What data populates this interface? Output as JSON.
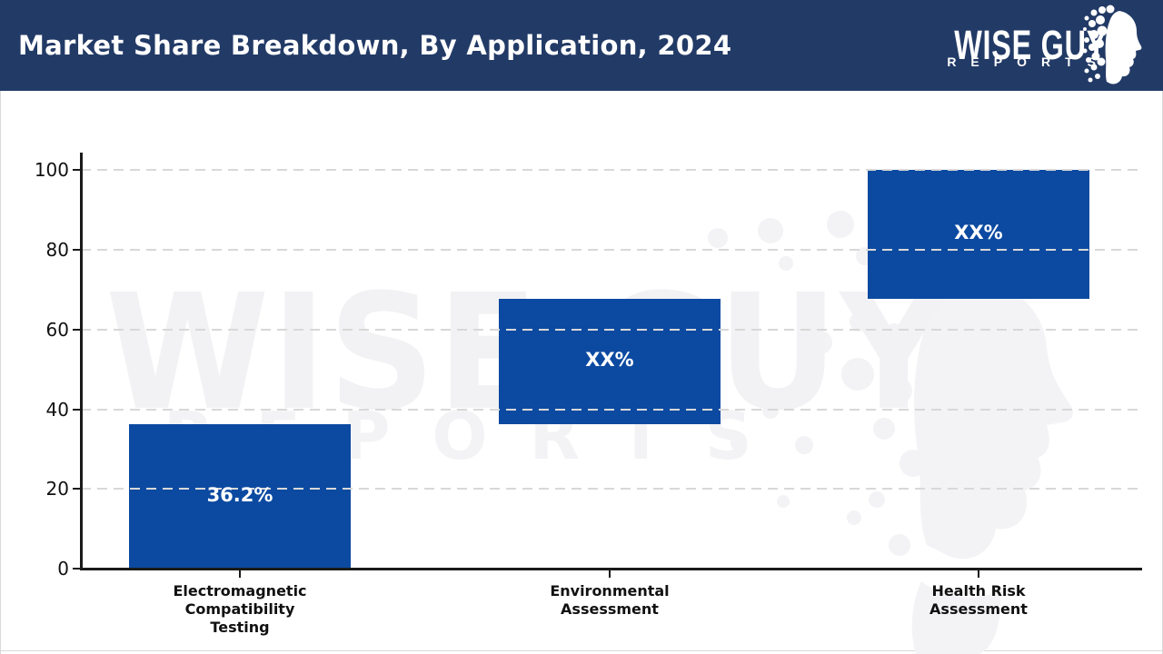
{
  "header": {
    "title": "Market Share Breakdown, By Application, 2024"
  },
  "logo": {
    "line1": "WISE GUY",
    "line2": "REPORTS",
    "icon": "face-profile-dots-icon"
  },
  "watermark": {
    "line1": "WISE GUY",
    "line2": "REPORTS"
  },
  "colors": {
    "header_bg": "#223a66",
    "bar": "#0c4aa1",
    "grid": "#d8d8d8",
    "axis": "#1a1a1a",
    "bar_label": "#ffffff",
    "watermark": "#f3f3f5"
  },
  "chart_data": {
    "type": "bar",
    "subtype": "waterfall",
    "title": "",
    "xlabel": "",
    "ylabel": "",
    "legend": "none",
    "grid": "dashed-horizontal",
    "ylim": [
      0,
      104.5
    ],
    "yticks": [
      0,
      20,
      40,
      60,
      80,
      100
    ],
    "categories": [
      [
        "Electromagnetic",
        "Compatibility",
        "Testing"
      ],
      [
        "Environmental",
        "Assessment"
      ],
      [
        "Health Risk",
        "Assessment"
      ]
    ],
    "series": [
      {
        "name": "Market Share",
        "segments": [
          {
            "start": 0,
            "end": 36.2,
            "label": "36.2%"
          },
          {
            "start": 36.2,
            "end": 67.8,
            "label": "XX%"
          },
          {
            "start": 67.8,
            "end": 100,
            "label": "XX%"
          }
        ]
      }
    ]
  }
}
